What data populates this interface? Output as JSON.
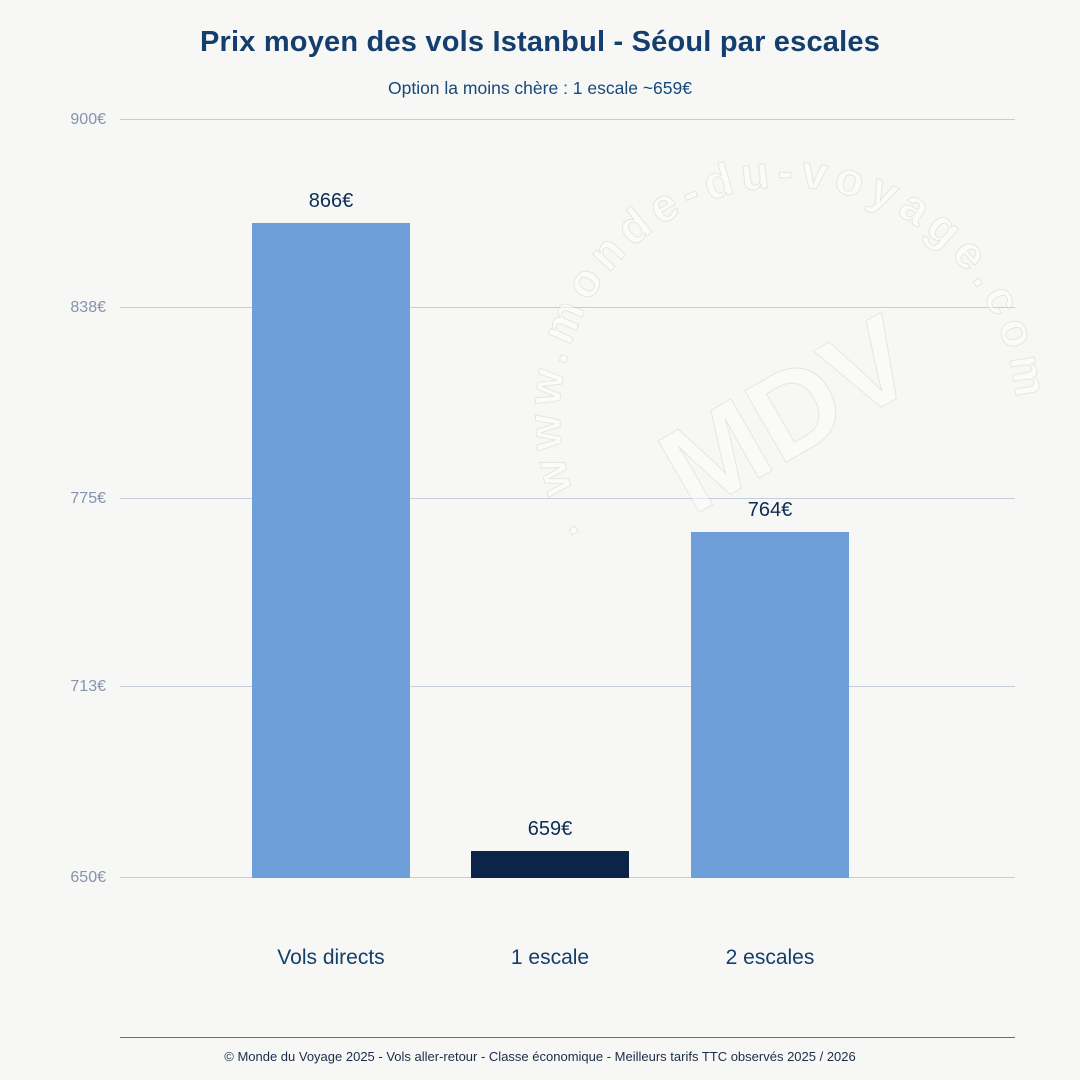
{
  "title": "Prix moyen des vols Istanbul - Séoul par escales",
  "subtitle": "Option la moins chère : 1 escale ~659€",
  "watermark": {
    "circle_text": "· www.monde-du-voyage.com",
    "center_text": "MDV"
  },
  "footer": {
    "text": "© Monde du Voyage 2025 - Vols aller-retour - Classe économique - Meilleurs tarifs TTC observés 2025 / 2026"
  },
  "chart_data": {
    "type": "bar",
    "title": "Prix moyen des vols Istanbul - Séoul par escales",
    "subtitle": "Option la moins chère : 1 escale ~659€",
    "categories": [
      "Vols directs",
      "1 escale",
      "2 escales"
    ],
    "values": [
      866,
      659,
      764
    ],
    "value_labels": [
      "866€",
      "659€",
      "764€"
    ],
    "unit": "€",
    "xlabel": "",
    "ylabel": "",
    "ylim": [
      650,
      900
    ],
    "yticks": [
      650,
      713,
      775,
      838,
      900
    ],
    "ytick_labels": [
      "650€",
      "713€",
      "775€",
      "838€",
      "900€"
    ],
    "bar_colors": [
      "#6f9fd9",
      "#0d2449",
      "#6f9fd9"
    ],
    "highlight_index": 1,
    "grid": true,
    "legend": false
  },
  "colors": {
    "background": "#f7f7f5",
    "title": "#143e6d",
    "bar_default": "#6f9fd9",
    "bar_highlight": "#0d2449",
    "gridline": "#c6cdda",
    "tick_label": "#8593ad"
  }
}
